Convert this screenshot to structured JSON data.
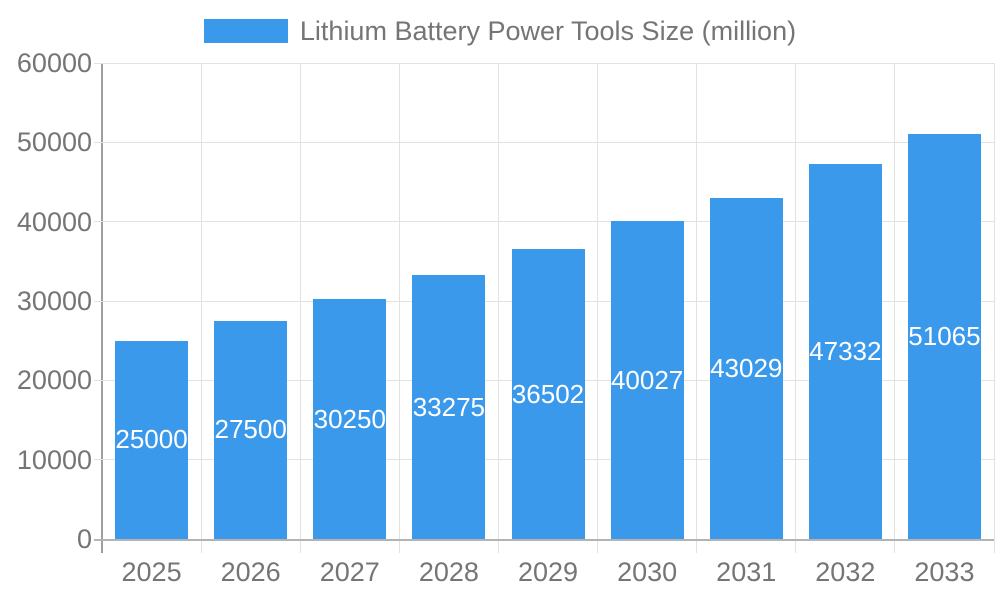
{
  "legend": {
    "label": "Lithium Battery Power Tools Size (million)"
  },
  "colors": {
    "bar": "#3B99EC",
    "grid": "#E2E2E2",
    "baseline": "#B3B3B3",
    "yaxis_line": "#9E9E9E",
    "tick_label": "#757575",
    "value_label": "#FFFFFF",
    "background": "#FFFFFF"
  },
  "chart_data": {
    "type": "bar",
    "title": "Lithium Battery Power Tools Size (million)",
    "categories": [
      "2025",
      "2026",
      "2027",
      "2028",
      "2029",
      "2030",
      "2031",
      "2032",
      "2033"
    ],
    "series": [
      {
        "name": "Lithium Battery Power Tools Size (million)",
        "color": "#3B99EC",
        "values": [
          25000,
          27500,
          30250,
          33275,
          36502,
          40027,
          43029,
          47332,
          51065
        ]
      }
    ],
    "xlabel": "",
    "ylabel": "",
    "ylim": [
      0,
      60000
    ],
    "ytick_step": 10000,
    "ytick_labels": [
      "0",
      "10000",
      "20000",
      "30000",
      "40000",
      "50000",
      "60000"
    ],
    "grid": true,
    "legend_position": "top",
    "value_labels": {
      "position": "inside-center",
      "color": "#FFFFFF"
    }
  }
}
